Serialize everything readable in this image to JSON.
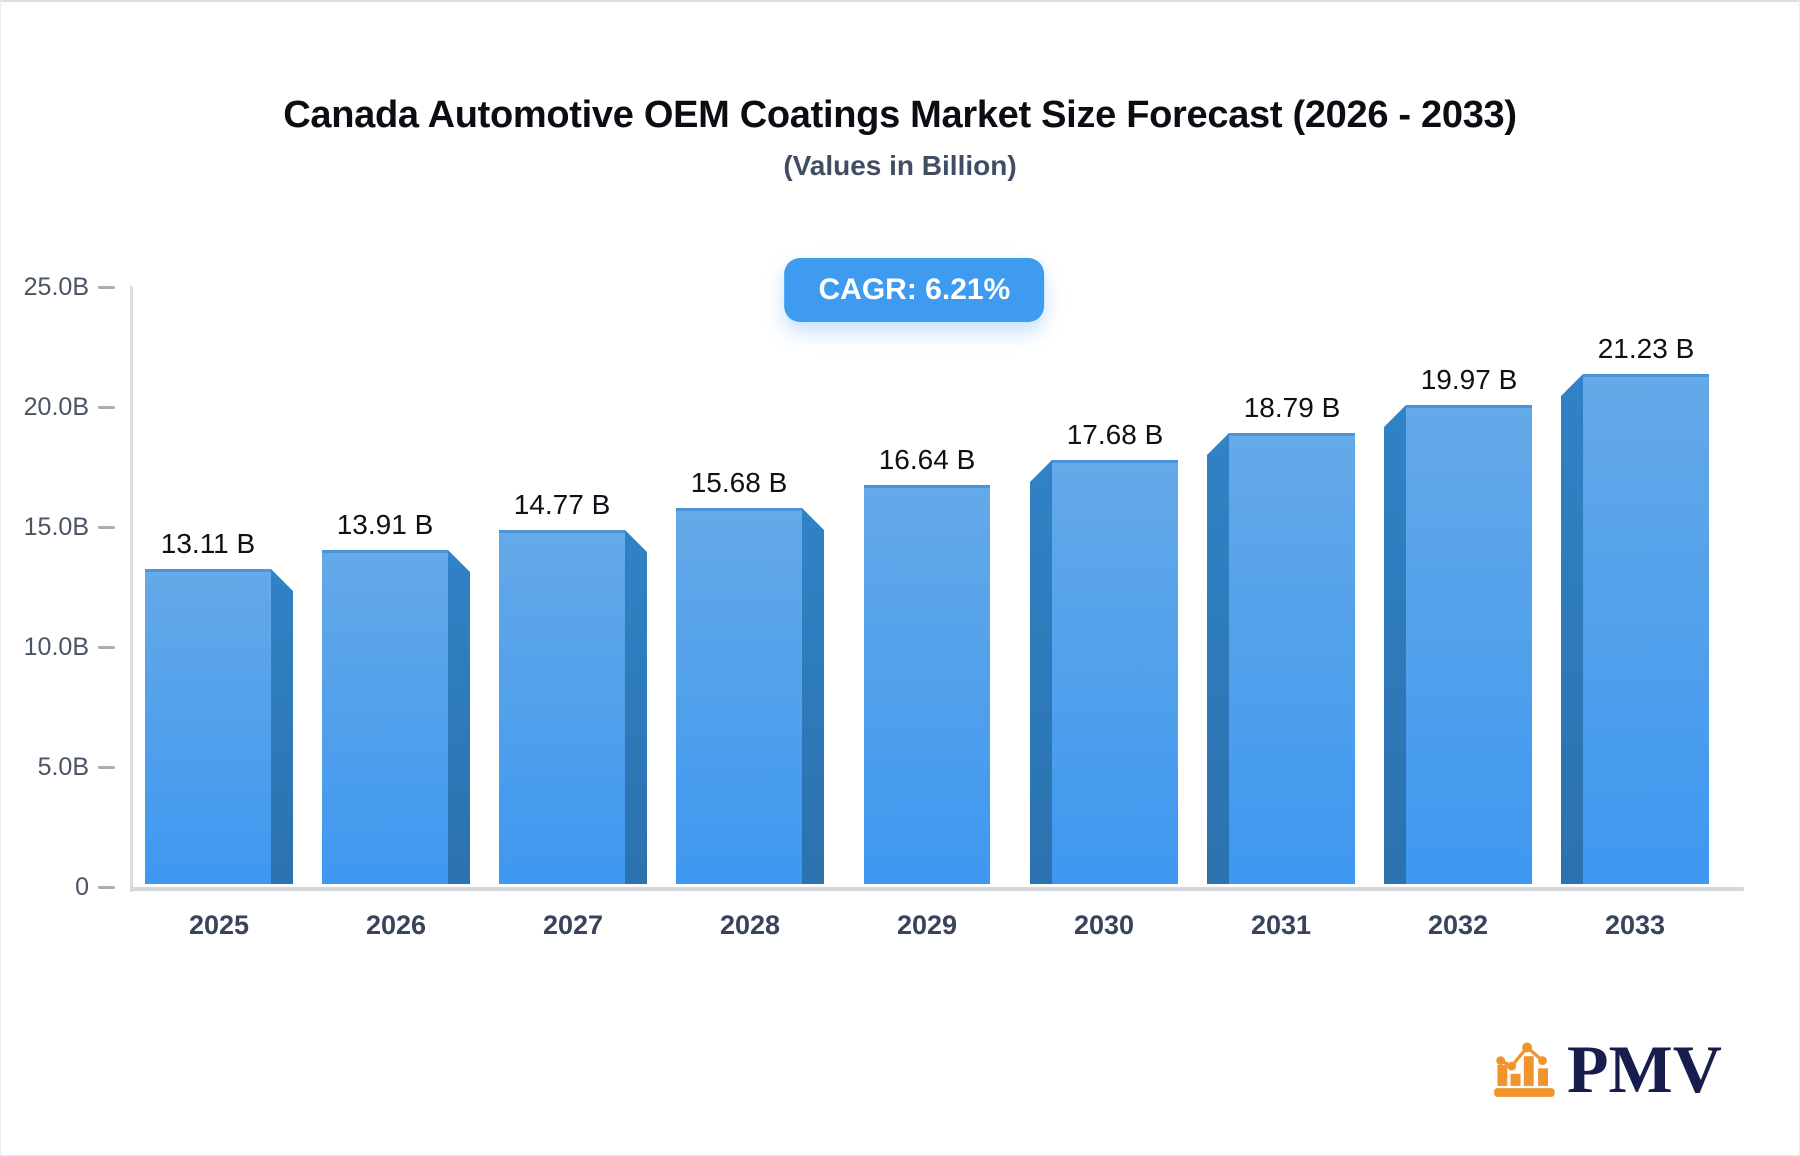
{
  "page": {
    "title": "Canada Automotive OEM Coatings Market Size Forecast (2026 - 2033)",
    "subtitle": "(Values in Billion)",
    "cagr_label": "CAGR: 6.21%"
  },
  "chart_data": {
    "type": "bar",
    "title": "Canada Automotive OEM Coatings Market Size Forecast (2026 - 2033)",
    "subtitle": "(Values in Billion)",
    "categories": [
      "2025",
      "2026",
      "2027",
      "2028",
      "2029",
      "2030",
      "2031",
      "2032",
      "2033"
    ],
    "values": [
      13.11,
      13.91,
      14.77,
      15.68,
      16.64,
      17.68,
      18.79,
      19.97,
      21.23
    ],
    "value_labels": [
      "13.11 B",
      "13.91 B",
      "14.77 B",
      "15.68 B",
      "16.64 B",
      "17.68 B",
      "18.79 B",
      "19.97 B",
      "21.23 B"
    ],
    "xlabel": "",
    "ylabel": "",
    "ylim": [
      0,
      25
    ],
    "yticks": [
      {
        "label": "25.0B",
        "value": 25
      },
      {
        "label": "20.0B",
        "value": 20
      },
      {
        "label": "15.0B",
        "value": 15
      },
      {
        "label": "10.0B",
        "value": 10
      },
      {
        "label": "5.0B",
        "value": 5
      },
      {
        "label": "0",
        "value": 0
      }
    ],
    "grid": false,
    "legend": false,
    "annotations": [
      "CAGR: 6.21%"
    ],
    "bar_style": "3d-beveled"
  },
  "branding": {
    "logo_text": "PMV",
    "logo_icon": "bar-chart-icon"
  },
  "colors": {
    "accent_blue": "#3e9bef",
    "bar_front_top": "#64a9e8",
    "bar_front_bottom": "#3e98f0",
    "bar_side_top": "#3182c6",
    "bar_side_bottom": "#2b72ae",
    "logo_orange": "#f0942d",
    "logo_navy": "#191d4d",
    "axis_gray": "#d4d7dc"
  }
}
